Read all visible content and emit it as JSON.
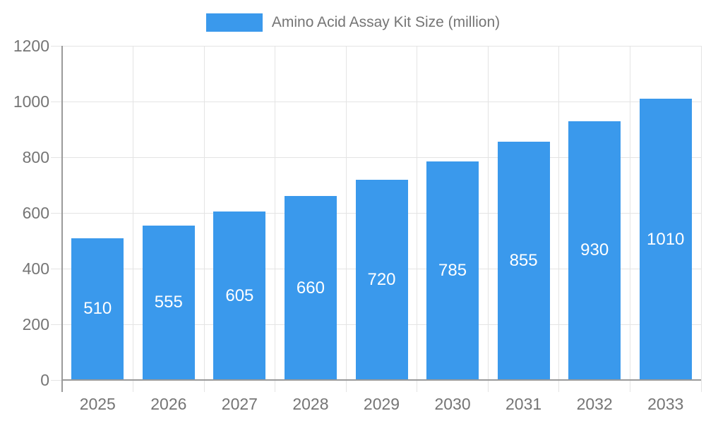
{
  "chart_data": {
    "type": "bar",
    "title": "Amino Acid Assay Kit Size (million)",
    "legend": [
      "Amino Acid Assay Kit Size (million)"
    ],
    "legend_position": "top-center",
    "categories": [
      "2025",
      "2026",
      "2027",
      "2028",
      "2029",
      "2030",
      "2031",
      "2032",
      "2033"
    ],
    "series": [
      {
        "name": "Amino Acid Assay Kit Size (million)",
        "values": [
          510,
          555,
          605,
          660,
          720,
          785,
          855,
          930,
          1010
        ]
      }
    ],
    "xlabel": "",
    "ylabel": "",
    "ylim": [
      0,
      1200
    ],
    "yticks": [
      0,
      200,
      400,
      600,
      800,
      1000,
      1200
    ],
    "grid": true,
    "value_labels_position": "inside-center"
  },
  "colors": {
    "bar": "#3A99EC",
    "grid": "#E4E4E4",
    "axis": "#9A9A9A",
    "text": "#757575",
    "value_label": "#FFFFFF",
    "background": "#FFFFFF"
  }
}
